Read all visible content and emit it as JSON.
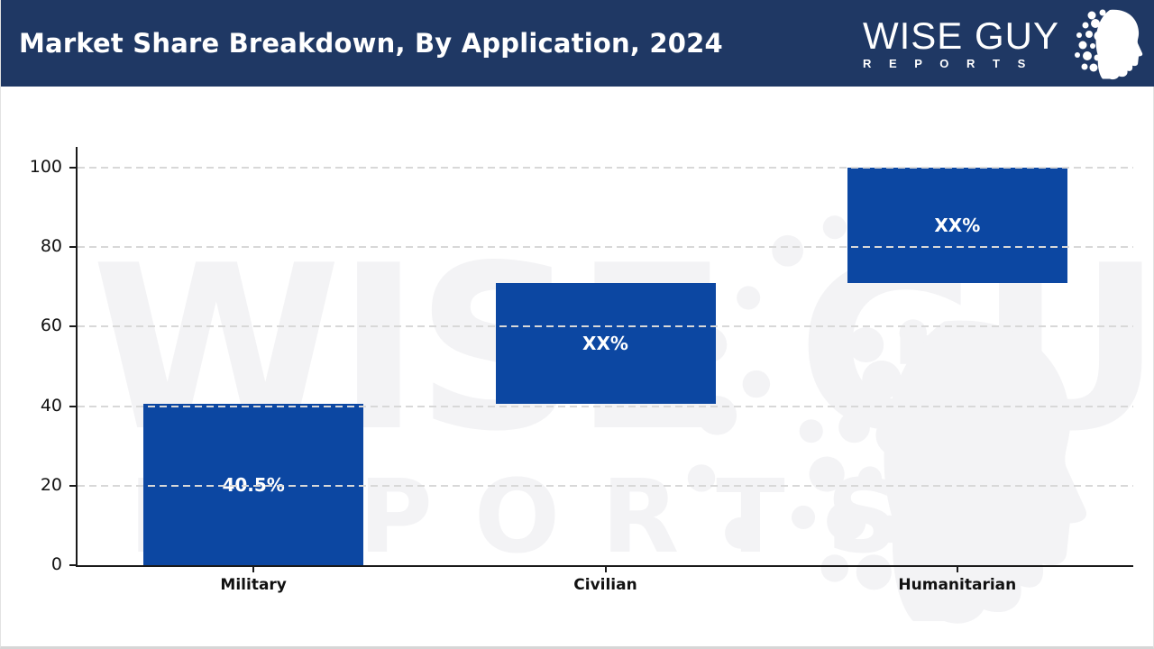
{
  "header": {
    "title": "Market Share Breakdown, By Application, 2024",
    "logo": {
      "line1": "WISE GUY",
      "line2": "R E P O R T S"
    }
  },
  "watermark": {
    "line1": "WISE GUY",
    "line2": "REPORTS"
  },
  "colors": {
    "header_bg": "#1f3864",
    "bar_fill": "#0c47a2",
    "bar_label_text": "#ffffff",
    "gridline": "#d8d8d8",
    "axis": "#1a1a1a",
    "watermark": "#f3f3f5"
  },
  "chart_data": {
    "type": "bar",
    "subtype": "waterfall",
    "title": "Market Share Breakdown, By Application, 2024",
    "categories": [
      "Military",
      "Civilian",
      "Humanitarian"
    ],
    "segments": [
      {
        "category": "Military",
        "start": 0,
        "end": 40.5,
        "label": "40.5%"
      },
      {
        "category": "Civilian",
        "start": 40.5,
        "end": 71,
        "label": "XX%"
      },
      {
        "category": "Humanitarian",
        "start": 71,
        "end": 100,
        "label": "XX%"
      }
    ],
    "ylabel": "",
    "xlabel": "",
    "yticks": [
      0,
      20,
      40,
      60,
      80,
      100
    ],
    "ylim": [
      0,
      105
    ],
    "grid": "horizontal dashed",
    "legend": "none"
  }
}
